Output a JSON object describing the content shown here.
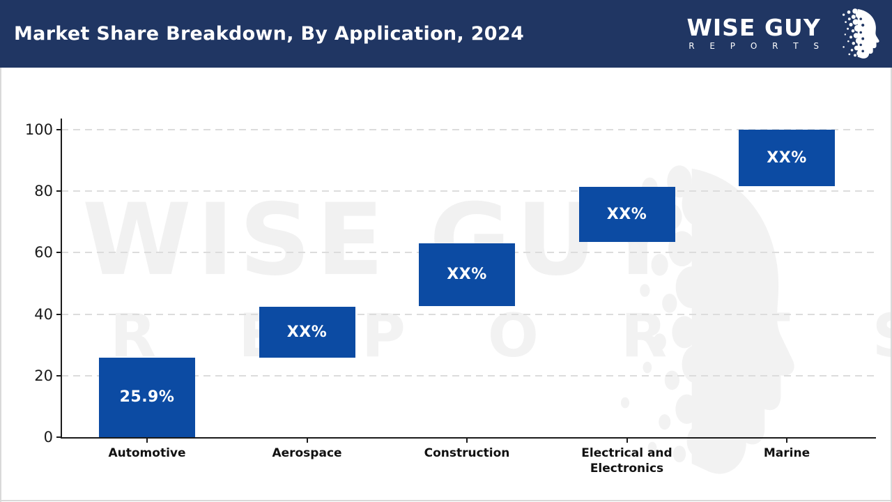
{
  "header": {
    "title": "Market Share Breakdown, By Application, 2024",
    "bg_color": "#203663",
    "logo": {
      "line1": "WISE GUY",
      "line2": "R E P O R T S"
    }
  },
  "watermark": {
    "line1": "WISE GUY",
    "line2": "R E P O R T S"
  },
  "chart_data": {
    "type": "bar",
    "variant": "waterfall",
    "title": "Market Share Breakdown, By Application, 2024",
    "categories": [
      "Automotive",
      "Aerospace",
      "Construction",
      "Electrical and\nElectronics",
      "Marine"
    ],
    "segments": [
      {
        "category": "Automotive",
        "start": 0,
        "end": 25.9,
        "label": "25.9%"
      },
      {
        "category": "Aerospace",
        "start": 25.9,
        "end": 42.3,
        "label": "XX%"
      },
      {
        "category": "Construction",
        "start": 42.7,
        "end": 63.1,
        "label": "XX%"
      },
      {
        "category": "Electrical and\nElectronics",
        "start": 63.4,
        "end": 81.3,
        "label": "XX%"
      },
      {
        "category": "Marine",
        "start": 81.6,
        "end": 100,
        "label": "XX%"
      }
    ],
    "xlabel": "",
    "ylabel": "",
    "ylim": [
      0,
      100
    ],
    "yticks": [
      0,
      20,
      40,
      60,
      80,
      100
    ],
    "grid": "horizontal-dashed",
    "legend": "none",
    "bar_color": "#0c4ba3",
    "bar_label_color": "#ffffff",
    "axis_color": "#1a1a1a",
    "grid_color": "#dcdcdc"
  }
}
